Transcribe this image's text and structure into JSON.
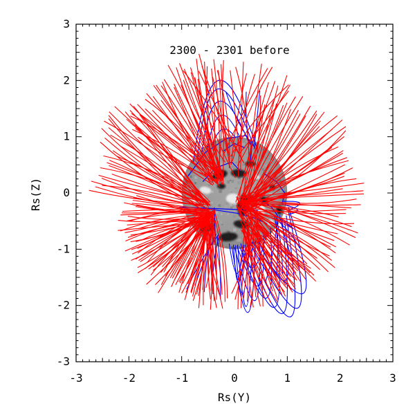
{
  "figure": {
    "title": "2300 - 2301 before",
    "xlabel": "Rs(Y)",
    "ylabel": "Rs(Z)"
  },
  "chart_data": {
    "type": "line",
    "title": "2300 - 2301 before",
    "xlabel": "Rs(Y)",
    "ylabel": "Rs(Z)",
    "xlim": [
      -3,
      3
    ],
    "ylim": [
      -3,
      3
    ],
    "xticks": [
      -3,
      -2,
      -1,
      0,
      1,
      2,
      3
    ],
    "yticks": [
      -3,
      -2,
      -1,
      0,
      1,
      2,
      3
    ],
    "grid": false,
    "legend": null,
    "description": "PFSS coronal magnetic field line rendering over a solar magnetogram disk of radius 1 Rs centered at the origin. Red = open field lines, blue = closed field lines.",
    "colors": {
      "open_field_lines": "#ff0000",
      "closed_field_lines": "#0000ff",
      "frame": "#000000",
      "background": "#ffffff",
      "disk_base": "#9a9a9a",
      "blob_dark": "#0d0d0d",
      "blob_light": "#f4f4f4"
    },
    "sun_disk": {
      "center": [
        0,
        0
      ],
      "radius": 1.0,
      "noise": {
        "seed": 77,
        "count": 430,
        "gray_min": 70,
        "gray_max": 210,
        "opacity": 0.4
      },
      "blobs": [
        {
          "y": -0.3,
          "z": 0.33,
          "rx": 0.17,
          "ry": 0.08,
          "rot": -10,
          "color": "dark"
        },
        {
          "y": -0.47,
          "z": 0.36,
          "rx": 0.07,
          "ry": 0.05,
          "rot": 0,
          "color": "light"
        },
        {
          "y": 0.08,
          "z": 0.35,
          "rx": 0.15,
          "ry": 0.07,
          "rot": 5,
          "color": "dark"
        },
        {
          "y": 0.3,
          "z": 0.52,
          "rx": 0.1,
          "ry": 0.05,
          "rot": 0,
          "color": "dark"
        },
        {
          "y": -0.55,
          "z": 0.05,
          "rx": 0.11,
          "ry": 0.06,
          "rot": 15,
          "color": "light"
        },
        {
          "y": -0.03,
          "z": -0.1,
          "rx": 0.13,
          "ry": 0.09,
          "rot": 0,
          "color": "light"
        },
        {
          "y": 0.16,
          "z": -0.22,
          "rx": 0.1,
          "ry": 0.2,
          "rot": 8,
          "color": "dark"
        },
        {
          "y": 0.33,
          "z": -0.1,
          "rx": 0.07,
          "ry": 0.05,
          "rot": 0,
          "color": "dark"
        },
        {
          "y": -0.63,
          "z": -0.42,
          "rx": 0.12,
          "ry": 0.07,
          "rot": -15,
          "color": "light"
        },
        {
          "y": -0.52,
          "z": -0.62,
          "rx": 0.14,
          "ry": 0.07,
          "rot": -20,
          "color": "dark"
        },
        {
          "y": 0.14,
          "z": -0.56,
          "rx": 0.16,
          "ry": 0.07,
          "rot": 10,
          "color": "dark"
        },
        {
          "y": 0.5,
          "z": -0.3,
          "rx": 0.08,
          "ry": 0.1,
          "rot": 0,
          "color": "light"
        },
        {
          "y": 0.55,
          "z": -0.12,
          "rx": 0.08,
          "ry": 0.06,
          "rot": 0,
          "color": "dark"
        },
        {
          "y": -0.12,
          "z": -0.78,
          "rx": 0.18,
          "ry": 0.08,
          "rot": -5,
          "color": "dark"
        },
        {
          "y": 0.68,
          "z": -0.52,
          "rx": 0.07,
          "ry": 0.05,
          "rot": 0,
          "color": "light"
        },
        {
          "y": 0.72,
          "z": 0.1,
          "rx": 0.06,
          "ry": 0.04,
          "rot": 0,
          "color": "dark"
        },
        {
          "y": 0.42,
          "z": 0.28,
          "rx": 0.06,
          "ry": 0.04,
          "rot": 0,
          "color": "light"
        },
        {
          "y": -0.25,
          "z": 0.12,
          "rx": 0.08,
          "ry": 0.05,
          "rot": 0,
          "color": "dark"
        },
        {
          "y": 0.85,
          "z": -0.3,
          "rx": 0.06,
          "ry": 0.08,
          "rot": 0,
          "color": "dark"
        },
        {
          "y": -0.8,
          "z": -0.15,
          "rx": 0.07,
          "ry": 0.05,
          "rot": 0,
          "color": "light"
        }
      ]
    },
    "open_field_bundles": [
      {
        "name": "right-fan",
        "seed": 101,
        "count": 80,
        "origin": [
          0.17,
          -0.2
        ],
        "jitter": 0.15,
        "theta": [
          -68,
          75
        ],
        "peak": 5,
        "r_end": [
          1.45,
          2.5
        ]
      },
      {
        "name": "upper-left-fan",
        "seed": 202,
        "count": 38,
        "origin": [
          -0.33,
          0.22
        ],
        "jitter": 0.12,
        "theta": [
          96,
          152
        ],
        "peak": 120,
        "r_end": [
          1.55,
          2.6
        ]
      },
      {
        "name": "left-fan",
        "seed": 303,
        "count": 30,
        "origin": [
          -0.55,
          -0.22
        ],
        "jitter": 0.1,
        "theta": [
          140,
          180
        ],
        "peak": 172,
        "r_end": [
          1.6,
          2.85
        ]
      },
      {
        "name": "lower-left-fan",
        "seed": 404,
        "count": 85,
        "origin": [
          -0.48,
          -0.4
        ],
        "jitter": 0.12,
        "theta": [
          181,
          266
        ],
        "peak": 215,
        "r_end": [
          1.35,
          2.35
        ]
      },
      {
        "name": "lower-right-fan",
        "seed": 505,
        "count": 30,
        "origin": [
          0.25,
          -0.55
        ],
        "jitter": 0.18,
        "theta": [
          268,
          318
        ],
        "peak": 288,
        "r_end": [
          1.4,
          2.1
        ]
      },
      {
        "name": "top-fan",
        "seed": 606,
        "count": 20,
        "origin": [
          0.05,
          0.5
        ],
        "jitter": 0.25,
        "theta": [
          58,
          118
        ],
        "peak": 88,
        "r_end": [
          1.7,
          2.45
        ]
      }
    ],
    "closed_strand_bundles": [
      {
        "name": "lower-left-blue",
        "seed": 711,
        "count": 5,
        "origin": [
          -0.32,
          -0.72
        ],
        "jitter": 0.1,
        "theta": [
          238,
          266
        ],
        "peak": 252,
        "r_end": [
          1.5,
          2.0
        ]
      },
      {
        "name": "lower-right-blue",
        "seed": 722,
        "count": 5,
        "origin": [
          0.78,
          -0.45
        ],
        "jitter": 0.08,
        "theta": [
          285,
          325
        ],
        "peak": 300,
        "r_end": [
          1.35,
          1.75
        ]
      },
      {
        "name": "top-blue-strands",
        "seed": 733,
        "count": 3,
        "origin": [
          0.3,
          0.8
        ],
        "jitter": 0.1,
        "theta": [
          72,
          100
        ],
        "peak": 85,
        "r_end": [
          1.35,
          1.95
        ]
      }
    ],
    "closed_loops": {
      "top": [
        {
          "f1": [
            -0.78,
            0.55
          ],
          "f2": [
            0.45,
            0.72
          ],
          "apex": [
            -0.28,
            1.92
          ]
        },
        {
          "f1": [
            -0.7,
            0.62
          ],
          "f2": [
            0.38,
            0.8
          ],
          "apex": [
            -0.3,
            1.78
          ]
        },
        {
          "f1": [
            -0.62,
            0.7
          ],
          "f2": [
            0.28,
            0.88
          ],
          "apex": [
            -0.28,
            1.58
          ]
        },
        {
          "f1": [
            -0.52,
            0.78
          ],
          "f2": [
            0.12,
            0.95
          ],
          "apex": [
            -0.25,
            1.35
          ]
        },
        {
          "f1": [
            -0.42,
            0.85
          ],
          "f2": [
            0.02,
            0.98
          ],
          "apex": [
            -0.22,
            1.12
          ]
        }
      ],
      "bottom": [
        {
          "f1": [
            -0.02,
            -0.92
          ],
          "f2": [
            0.22,
            -0.9
          ],
          "apex": [
            0.08,
            -1.55
          ]
        },
        {
          "f1": [
            0.02,
            -0.93
          ],
          "f2": [
            0.28,
            -0.88
          ],
          "apex": [
            0.15,
            -1.75
          ]
        },
        {
          "f1": [
            0.06,
            -0.92
          ],
          "f2": [
            0.34,
            -0.86
          ],
          "apex": [
            0.22,
            -1.95
          ]
        },
        {
          "f1": [
            -0.1,
            -0.9
          ],
          "f2": [
            0.18,
            -0.92
          ],
          "apex": [
            0.05,
            -1.4
          ]
        },
        {
          "f1": [
            0.05,
            -0.95
          ],
          "f2": [
            0.55,
            -0.7
          ],
          "apex": [
            0.45,
            -1.6
          ]
        },
        {
          "f1": [
            0.1,
            -0.95
          ],
          "f2": [
            0.68,
            -0.62
          ],
          "apex": [
            0.6,
            -1.8
          ]
        },
        {
          "f1": [
            0.15,
            -0.94
          ],
          "f2": [
            0.8,
            -0.55
          ],
          "apex": [
            0.75,
            -1.95
          ]
        },
        {
          "f1": [
            0.2,
            -0.93
          ],
          "f2": [
            0.9,
            -0.48
          ],
          "apex": [
            0.9,
            -2.05
          ]
        },
        {
          "f1": [
            0.25,
            -0.92
          ],
          "f2": [
            0.98,
            -0.4
          ],
          "apex": [
            1.05,
            -2.1
          ]
        },
        {
          "f1": [
            0.3,
            -0.9
          ],
          "f2": [
            1.02,
            -0.32
          ],
          "apex": [
            1.18,
            -1.95
          ]
        },
        {
          "f1": [
            0.35,
            -0.88
          ],
          "f2": [
            1.02,
            -0.25
          ],
          "apex": [
            1.28,
            -1.7
          ]
        },
        {
          "f1": [
            0.12,
            -0.9
          ],
          "f2": [
            0.6,
            -0.75
          ],
          "apex": [
            0.35,
            -1.3
          ]
        },
        {
          "f1": [
            0.45,
            -0.85
          ],
          "f2": [
            0.95,
            -0.5
          ],
          "apex": [
            0.95,
            -1.5
          ]
        },
        {
          "f1": [
            -0.05,
            -0.95
          ],
          "f2": [
            0.4,
            -0.85
          ],
          "apex": [
            0.25,
            -2.05
          ]
        },
        {
          "f1": [
            0.0,
            -0.96
          ],
          "f2": [
            0.48,
            -0.8
          ],
          "apex": [
            0.38,
            -1.85
          ]
        }
      ],
      "right_limb": [
        {
          "f1": [
            0.9,
            -0.2
          ],
          "f2": [
            1.02,
            -0.38
          ],
          "apex": [
            1.18,
            -0.3
          ]
        },
        {
          "f1": [
            0.92,
            -0.15
          ],
          "f2": [
            1.05,
            -0.3
          ],
          "apex": [
            1.22,
            -0.18
          ]
        },
        {
          "f1": [
            0.85,
            -0.45
          ],
          "f2": [
            0.98,
            -0.55
          ],
          "apex": [
            1.1,
            -0.62
          ]
        }
      ]
    },
    "disk_paths": [
      [
        [
          -0.88,
          0.3
        ],
        [
          -0.55,
          0.72
        ],
        [
          -0.15,
          0.97
        ],
        [
          0.22,
          1.02
        ],
        [
          0.33,
          0.82
        ],
        [
          0.3,
          0.55
        ]
      ],
      [
        [
          -1.05,
          -0.25
        ],
        [
          -0.52,
          -0.27
        ],
        [
          -0.05,
          -0.29
        ],
        [
          0.45,
          -0.31
        ]
      ],
      [
        [
          -0.52,
          -0.28
        ],
        [
          0.05,
          -0.36
        ],
        [
          0.4,
          -0.45
        ],
        [
          0.62,
          -0.55
        ]
      ],
      [
        [
          -0.38,
          -0.26
        ],
        [
          -0.37,
          -0.6
        ],
        [
          -0.36,
          -1.05
        ],
        [
          -0.35,
          -1.35
        ]
      ],
      [
        [
          -0.6,
          0.2
        ],
        [
          -0.35,
          0.45
        ],
        [
          -0.05,
          0.55
        ],
        [
          0.1,
          0.4
        ]
      ],
      [
        [
          0.55,
          0.35
        ],
        [
          0.8,
          0.2
        ],
        [
          0.95,
          0.0
        ],
        [
          0.9,
          -0.2
        ]
      ],
      [
        [
          0.45,
          -0.1
        ],
        [
          0.7,
          -0.25
        ],
        [
          0.85,
          -0.45
        ]
      ],
      [
        [
          -0.2,
          0.75
        ],
        [
          0.0,
          0.88
        ],
        [
          0.2,
          0.8
        ]
      ]
    ]
  }
}
